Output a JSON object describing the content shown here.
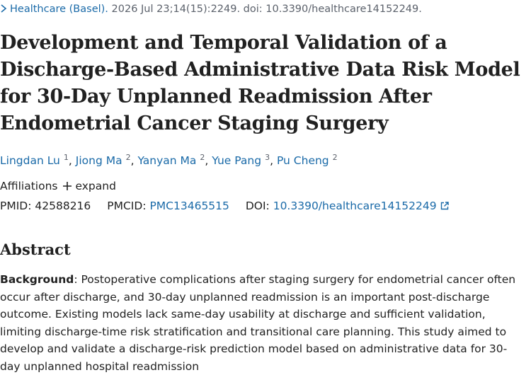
{
  "citation": {
    "journal": "Healthcare (Basel).",
    "details": " 2026 Jul 23;14(15):2249. doi: 10.3390/healthcare14152249."
  },
  "title": "Development and Temporal Validation of a Discharge-Based Administrative Data Risk Model for 30-Day Unplanned Readmission After Endometrial Cancer Staging Surgery",
  "authors": [
    {
      "name": "Lingdan Lu",
      "affiliation": "1"
    },
    {
      "name": "Jiong Ma",
      "affiliation": "2"
    },
    {
      "name": "Yanyan Ma",
      "affiliation": "2"
    },
    {
      "name": "Yue Pang",
      "affiliation": "3"
    },
    {
      "name": "Pu Cheng",
      "affiliation": "2"
    }
  ],
  "author_separator": ",",
  "affiliations": {
    "label": "Affiliations",
    "toggle": "expand"
  },
  "identifiers": {
    "pmid_label": "PMID:",
    "pmid": "42588216",
    "pmcid_label": "PMCID:",
    "pmcid": "PMC13465515",
    "doi_label": "DOI:",
    "doi": "10.3390/healthcare14152249"
  },
  "abstract": {
    "heading": "Abstract",
    "background_label": "Background",
    "background_text": ": Postoperative complications after staging surgery for endometrial cancer often occur after discharge, and 30-day unplanned readmission is an important post-discharge outcome. Existing models lack same-day usability at discharge and sufficient validation, limiting discharge-time risk stratification and transitional care planning. This study aimed to develop and validate a discharge-risk prediction model based on administrative data for 30-day unplanned hospital readmission"
  }
}
